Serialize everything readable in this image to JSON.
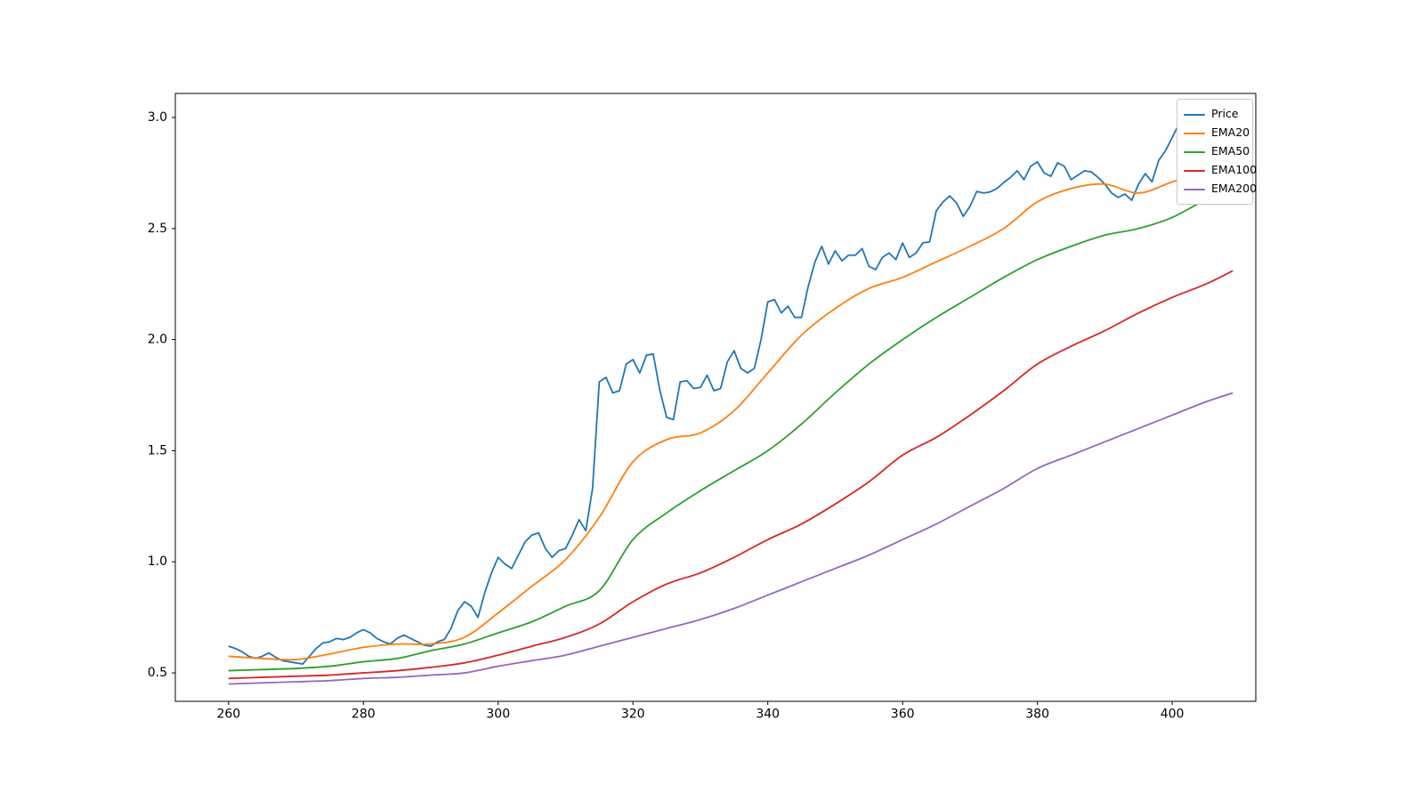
{
  "figure": {
    "background": "#ffffff",
    "title": ""
  },
  "chart_data": {
    "type": "line",
    "title": "",
    "xlabel": "",
    "ylabel": "",
    "grid": false,
    "xlim": [
      252.1,
      412.4
    ],
    "ylim": [
      0.372,
      3.108
    ],
    "x_ticks": [
      260,
      280,
      300,
      320,
      340,
      360,
      380,
      400
    ],
    "y_ticks": [
      0.5,
      1.0,
      1.5,
      2.0,
      2.5,
      3.0
    ],
    "y_tick_labels": [
      "0.5",
      "1.0",
      "1.5",
      "2.0",
      "2.5",
      "3.0"
    ],
    "legend": {
      "position": "upper right",
      "entries": [
        "Price",
        "EMA20",
        "EMA50",
        "EMA100",
        "EMA200"
      ]
    },
    "series": [
      {
        "name": "Price",
        "color": "#1f77b4",
        "smooth": false,
        "x_start": 260,
        "x_step": 1,
        "y": [
          0.62,
          0.61,
          0.595,
          0.575,
          0.565,
          0.575,
          0.59,
          0.57,
          0.555,
          0.55,
          0.545,
          0.54,
          0.575,
          0.61,
          0.635,
          0.64,
          0.655,
          0.65,
          0.66,
          0.68,
          0.695,
          0.68,
          0.655,
          0.64,
          0.63,
          0.655,
          0.67,
          0.655,
          0.64,
          0.625,
          0.62,
          0.64,
          0.65,
          0.7,
          0.78,
          0.82,
          0.8,
          0.75,
          0.86,
          0.95,
          1.02,
          0.99,
          0.97,
          1.03,
          1.09,
          1.12,
          1.13,
          1.06,
          1.02,
          1.05,
          1.06,
          1.12,
          1.19,
          1.14,
          1.33,
          1.81,
          1.83,
          1.76,
          1.77,
          1.89,
          1.91,
          1.85,
          1.93,
          1.935,
          1.77,
          1.65,
          1.64,
          1.81,
          1.815,
          1.78,
          1.785,
          1.84,
          1.77,
          1.78,
          1.9,
          1.95,
          1.87,
          1.85,
          1.87,
          2.0,
          2.17,
          2.18,
          2.12,
          2.15,
          2.1,
          2.1,
          2.24,
          2.35,
          2.42,
          2.34,
          2.4,
          2.355,
          2.38,
          2.38,
          2.41,
          2.33,
          2.315,
          2.37,
          2.39,
          2.36,
          2.435,
          2.37,
          2.39,
          2.435,
          2.44,
          2.58,
          2.62,
          2.647,
          2.615,
          2.555,
          2.6,
          2.667,
          2.66,
          2.665,
          2.68,
          2.707,
          2.73,
          2.76,
          2.72,
          2.78,
          2.8,
          2.75,
          2.735,
          2.796,
          2.78,
          2.72,
          2.74,
          2.76,
          2.755,
          2.73,
          2.7,
          2.66,
          2.64,
          2.655,
          2.627,
          2.7,
          2.747,
          2.71,
          2.807,
          2.85,
          2.91,
          2.97
        ]
      },
      {
        "name": "EMA20",
        "color": "#ff7f0e",
        "smooth": true,
        "x": [
          260,
          265,
          270,
          275,
          280,
          285,
          290,
          295,
          300,
          305,
          310,
          315,
          320,
          325,
          330,
          335,
          340,
          345,
          350,
          355,
          360,
          365,
          370,
          375,
          380,
          385,
          390,
          395,
          400,
          405,
          409
        ],
        "y": [
          0.575,
          0.565,
          0.56,
          0.585,
          0.615,
          0.63,
          0.63,
          0.66,
          0.77,
          0.89,
          1.01,
          1.2,
          1.45,
          1.55,
          1.58,
          1.68,
          1.85,
          2.02,
          2.14,
          2.23,
          2.28,
          2.35,
          2.42,
          2.5,
          2.62,
          2.68,
          2.7,
          2.66,
          2.71,
          2.76,
          2.8
        ]
      },
      {
        "name": "EMA50",
        "color": "#2ca02c",
        "smooth": true,
        "x": [
          260,
          265,
          270,
          275,
          280,
          285,
          290,
          295,
          300,
          305,
          310,
          315,
          320,
          325,
          330,
          335,
          340,
          345,
          350,
          355,
          360,
          365,
          370,
          375,
          380,
          385,
          390,
          395,
          400,
          405,
          409
        ],
        "y": [
          0.51,
          0.515,
          0.52,
          0.53,
          0.55,
          0.565,
          0.6,
          0.63,
          0.68,
          0.73,
          0.8,
          0.87,
          1.1,
          1.22,
          1.32,
          1.41,
          1.5,
          1.62,
          1.76,
          1.89,
          2.0,
          2.1,
          2.19,
          2.28,
          2.36,
          2.42,
          2.47,
          2.5,
          2.55,
          2.63,
          2.68
        ]
      },
      {
        "name": "EMA100",
        "color": "#d62728",
        "smooth": true,
        "x": [
          260,
          265,
          270,
          275,
          280,
          285,
          290,
          295,
          300,
          305,
          310,
          315,
          320,
          325,
          330,
          335,
          340,
          345,
          350,
          355,
          360,
          365,
          370,
          375,
          380,
          385,
          390,
          395,
          400,
          405,
          409
        ],
        "y": [
          0.475,
          0.48,
          0.485,
          0.49,
          0.5,
          0.51,
          0.525,
          0.545,
          0.58,
          0.62,
          0.66,
          0.72,
          0.82,
          0.9,
          0.95,
          1.02,
          1.1,
          1.17,
          1.26,
          1.36,
          1.48,
          1.56,
          1.66,
          1.77,
          1.89,
          1.97,
          2.04,
          2.12,
          2.19,
          2.25,
          2.31
        ]
      },
      {
        "name": "EMA200",
        "color": "#9467bd",
        "smooth": true,
        "x": [
          260,
          265,
          270,
          275,
          280,
          285,
          290,
          295,
          300,
          305,
          310,
          315,
          320,
          325,
          330,
          335,
          340,
          345,
          350,
          355,
          360,
          365,
          370,
          375,
          380,
          385,
          390,
          395,
          400,
          405,
          409
        ],
        "y": [
          0.45,
          0.455,
          0.46,
          0.465,
          0.475,
          0.48,
          0.49,
          0.5,
          0.53,
          0.555,
          0.58,
          0.62,
          0.66,
          0.7,
          0.74,
          0.79,
          0.85,
          0.91,
          0.97,
          1.03,
          1.1,
          1.17,
          1.25,
          1.33,
          1.42,
          1.48,
          1.54,
          1.6,
          1.66,
          1.72,
          1.76
        ]
      }
    ]
  }
}
